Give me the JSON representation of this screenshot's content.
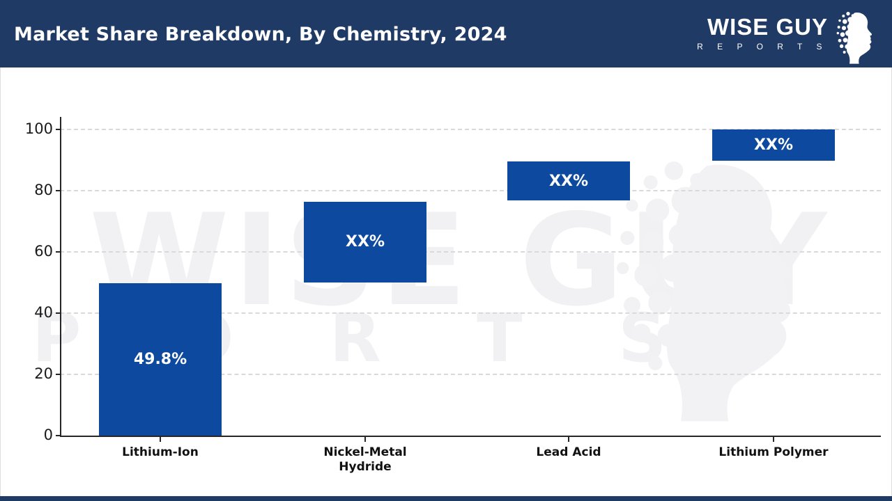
{
  "header": {
    "title": "Market Share Breakdown, By Chemistry, 2024",
    "bg_color": "#203a66",
    "logo": {
      "line1": "WISE GUY",
      "line2": "R E P O R T S"
    }
  },
  "watermark": {
    "line1": "WISE GUY",
    "line2": "P O R T S"
  },
  "chart_data": {
    "type": "bar",
    "subtype": "waterfall",
    "title": "Market Share Breakdown, By Chemistry, 2024",
    "categories": [
      "Lithium-Ion",
      "Nickel-Metal Hydride",
      "Lead Acid",
      "Lithium Polymer"
    ],
    "segments": [
      {
        "category": "Lithium-Ion",
        "start": 0,
        "end": 49.8,
        "label": "49.8%",
        "masked": false
      },
      {
        "category": "Nickel-Metal Hydride",
        "start": 50.0,
        "end": 76.4,
        "label": "XX%",
        "masked": true
      },
      {
        "category": "Lead Acid",
        "start": 76.8,
        "end": 89.5,
        "label": "XX%",
        "masked": true
      },
      {
        "category": "Lithium Polymer",
        "start": 89.7,
        "end": 100,
        "label": "XX%",
        "masked": true
      }
    ],
    "ylim": [
      0,
      100
    ],
    "yticks": [
      0,
      20,
      40,
      60,
      80,
      100
    ],
    "xlabel": "",
    "ylabel": "",
    "grid": "horizontal-dashed",
    "legend": "none",
    "bar_color": "#0d4a9f",
    "bar_label_color": "#ffffff",
    "axis_color": "#262626",
    "gridline_color": "#d9d9d9"
  },
  "footer": {
    "bar_color": "#203a66"
  }
}
